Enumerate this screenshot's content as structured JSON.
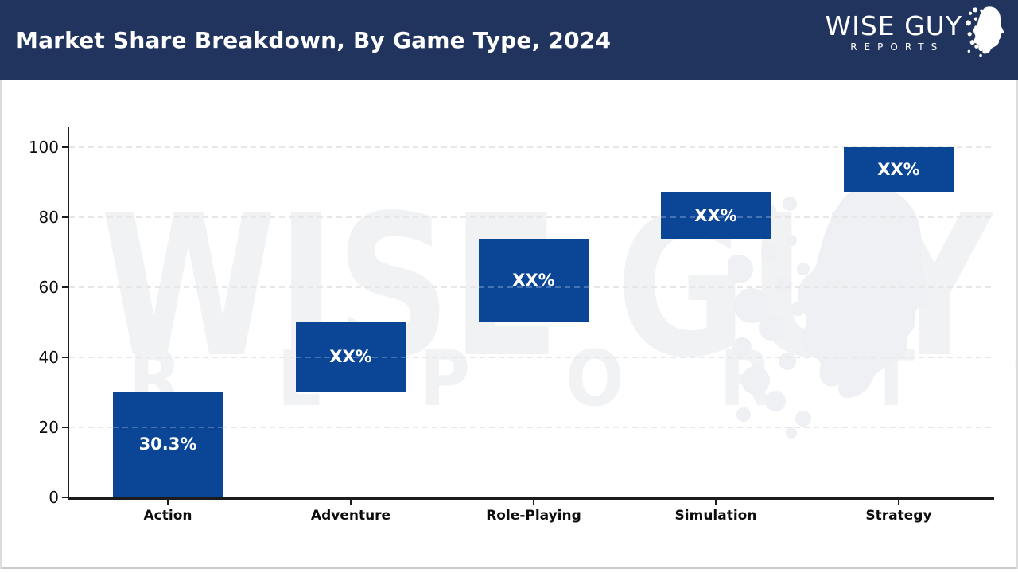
{
  "header": {
    "title": "Market Share Breakdown, By Game Type, 2024",
    "logo": {
      "line1": "WISE GUY",
      "line2": "REPORTS"
    },
    "bg_color": "#21345E"
  },
  "watermark": {
    "line1": "WISE GUY",
    "line2": "R E P O R T S"
  },
  "chart_data": {
    "type": "bar",
    "subtype": "waterfall-floating-bars",
    "title": "Market Share Breakdown, By Game Type, 2024",
    "categories": [
      "Action",
      "Adventure",
      "Role-Playing",
      "Simulation",
      "Strategy"
    ],
    "segments": [
      {
        "category": "Action",
        "start": 0,
        "end": 30.3,
        "label": "30.3%"
      },
      {
        "category": "Adventure",
        "start": 30.3,
        "end": 50.2,
        "label": "XX%"
      },
      {
        "category": "Role-Playing",
        "start": 50.2,
        "end": 73.8,
        "label": "XX%"
      },
      {
        "category": "Simulation",
        "start": 73.8,
        "end": 87.3,
        "label": "XX%"
      },
      {
        "category": "Strategy",
        "start": 87.3,
        "end": 100,
        "label": "XX%"
      }
    ],
    "ylim": [
      0,
      100
    ],
    "yticks": [
      0,
      20,
      40,
      60,
      80,
      100
    ],
    "grid": "horizontal-dashed",
    "legend": "none",
    "bar_color": "#0A4596",
    "bar_label_color": "#ffffff"
  }
}
